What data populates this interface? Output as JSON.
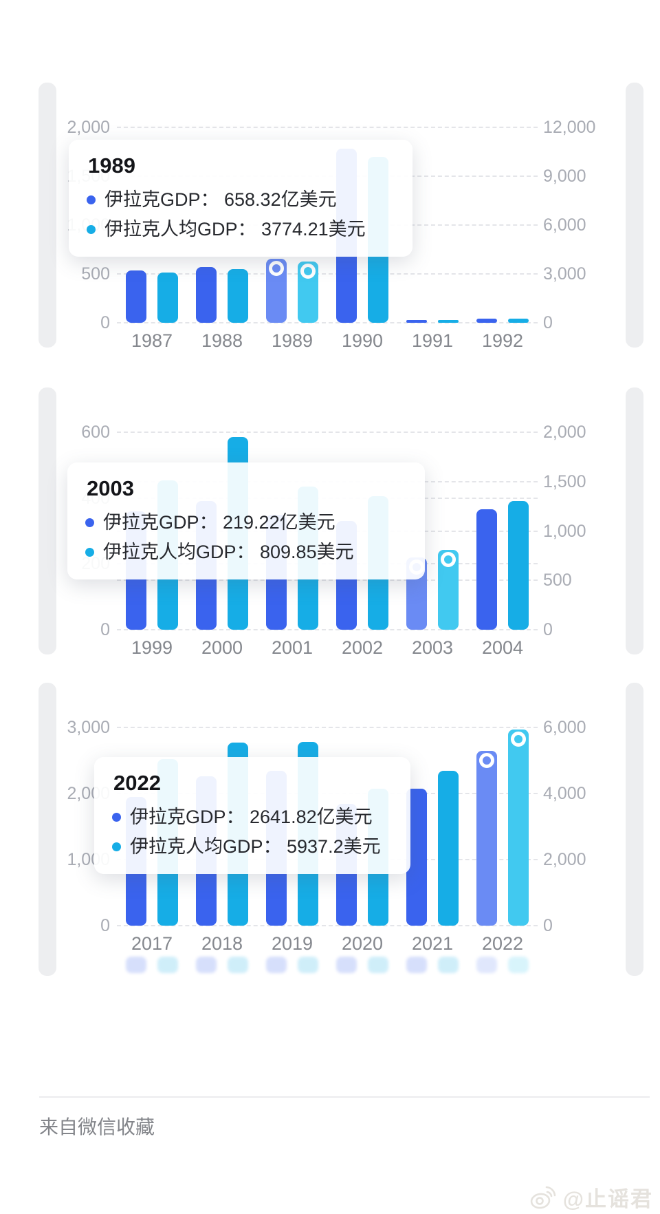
{
  "page": {
    "source_label": "来自微信收藏",
    "watermark_handle": "@止谣君"
  },
  "palette": {
    "gdp": "#3A63EE",
    "gdp_active": "#6A8BF4",
    "pc": "#16ADE6",
    "pc_active": "#41C9F0",
    "axis_label": "#A9ACB4",
    "year_label": "#85888E",
    "grid": "#E4E5E9",
    "strip": "#EDEEF0"
  },
  "chart_data": [
    {
      "type": "bar",
      "categories": [
        "1987",
        "1988",
        "1989",
        "1990",
        "1991",
        "1992"
      ],
      "series": [
        {
          "name": "伊拉克GDP",
          "axis": "left",
          "unit": "亿美元",
          "values": [
            535,
            570,
            658.32,
            1780,
            28,
            42
          ]
        },
        {
          "name": "伊拉克人均GDP",
          "axis": "right",
          "unit": "美元",
          "values": [
            3100,
            3300,
            3774.21,
            10200,
            180,
            250
          ]
        }
      ],
      "left_axis": {
        "labels": [
          "0",
          "500",
          "1,000",
          "1,500",
          "2,000"
        ],
        "max": 2000
      },
      "right_axis": {
        "labels": [
          "0",
          "3,000",
          "6,000",
          "9,000",
          "12,000"
        ],
        "max": 12000
      },
      "highlight_index": 2,
      "tooltip": {
        "title": "1989",
        "rows": [
          "伊拉克GDP： 658.32亿美元",
          "伊拉克人均GDP： 3774.21美元"
        ]
      }
    },
    {
      "type": "bar",
      "categories": [
        "1999",
        "2000",
        "2001",
        "2002",
        "2003",
        "2004"
      ],
      "series": [
        {
          "name": "伊拉克GDP",
          "axis": "left",
          "unit": "亿美元",
          "values": [
            360,
            390,
            350,
            330,
            219.22,
            365
          ]
        },
        {
          "name": "伊拉克人均GDP",
          "axis": "right",
          "unit": "美元",
          "values": [
            1510,
            1950,
            1450,
            1350,
            809.85,
            1302
          ]
        }
      ],
      "left_axis": {
        "labels": [
          "0",
          "200",
          "400",
          "600"
        ],
        "max": 600
      },
      "right_axis": {
        "labels": [
          "0",
          "500",
          "1,000",
          "1,500",
          "2,000"
        ],
        "max": 2000
      },
      "highlight_index": 4,
      "tooltip": {
        "title": "2003",
        "rows": [
          "伊拉克GDP： 219.22亿美元",
          "伊拉克人均GDP： 809.85美元"
        ]
      }
    },
    {
      "type": "bar",
      "categories": [
        "2017",
        "2018",
        "2019",
        "2020",
        "2021",
        "2022"
      ],
      "series": [
        {
          "name": "伊拉克GDP",
          "axis": "left",
          "unit": "亿美元",
          "values": [
            1950,
            2260,
            2340,
            1845,
            2075,
            2641.82
          ]
        },
        {
          "name": "伊拉克人均GDP",
          "axis": "right",
          "unit": "美元",
          "values": [
            5050,
            5540,
            5560,
            4150,
            4690,
            5937.2
          ]
        }
      ],
      "left_axis": {
        "labels": [
          "0",
          "1,000",
          "2,000",
          "3,000"
        ],
        "max": 3000
      },
      "right_axis": {
        "labels": [
          "0",
          "2,000",
          "4,000",
          "6,000"
        ],
        "max": 6000
      },
      "highlight_index": 5,
      "tooltip": {
        "title": "2022",
        "rows": [
          "伊拉克GDP： 2641.82亿美元",
          "伊拉克人均GDP： 5937.2美元"
        ]
      }
    }
  ]
}
